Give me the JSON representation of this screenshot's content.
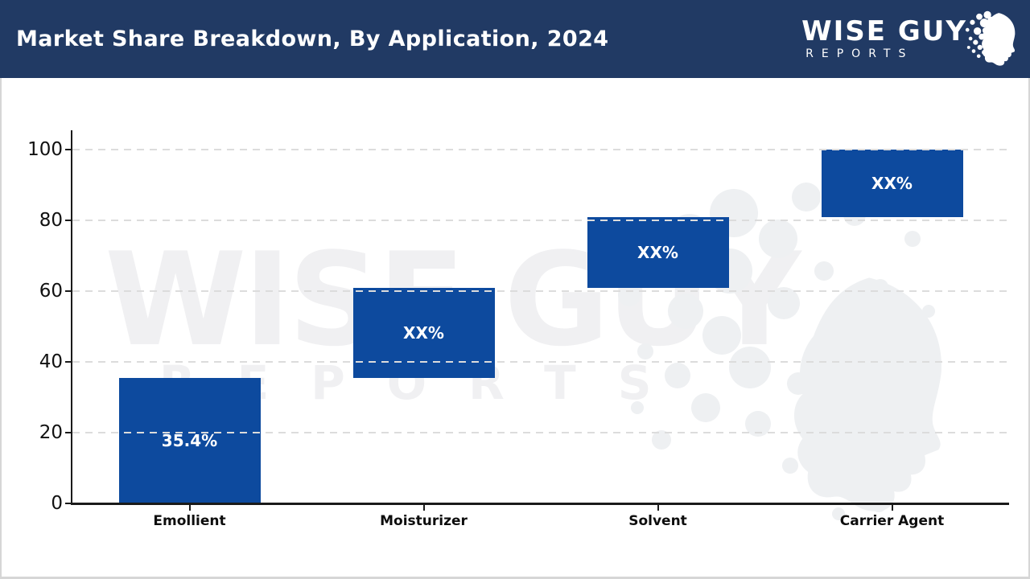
{
  "header": {
    "title": "Market Share Breakdown, By Application, 2024",
    "background_color": "#213a64"
  },
  "logo": {
    "line1": "WISE GUY",
    "line2": "REPORTS"
  },
  "watermark": {
    "line1": "WISE GUY",
    "line2": "REPORTS"
  },
  "chart_data": {
    "type": "bar",
    "subtype": "waterfall",
    "title": "Market Share Breakdown, By Application, 2024",
    "categories": [
      "Emollient",
      "Moisturizer",
      "Solvent",
      "Carrier Agent"
    ],
    "bars": [
      {
        "category": "Emollient",
        "start": 0,
        "end": 35.4,
        "value": 35.4,
        "label": "35.4%"
      },
      {
        "category": "Moisturizer",
        "start": 35.4,
        "end": 61,
        "value": 25.6,
        "label": "XX%"
      },
      {
        "category": "Solvent",
        "start": 61,
        "end": 81,
        "value": 20,
        "label": "XX%"
      },
      {
        "category": "Carrier Agent",
        "start": 81,
        "end": 100,
        "value": 19,
        "label": "XX%"
      }
    ],
    "xlabel": "",
    "ylabel": "",
    "ylim": [
      0,
      100
    ],
    "yticks": [
      0,
      20,
      40,
      60,
      80,
      100
    ],
    "grid": "horizontal-dashed",
    "legend": "none",
    "bar_color": "#0d4a9e",
    "bar_label_color": "#ffffff",
    "axis_color": "#1a1a1a",
    "gridline_color": "#dcdcdc"
  }
}
